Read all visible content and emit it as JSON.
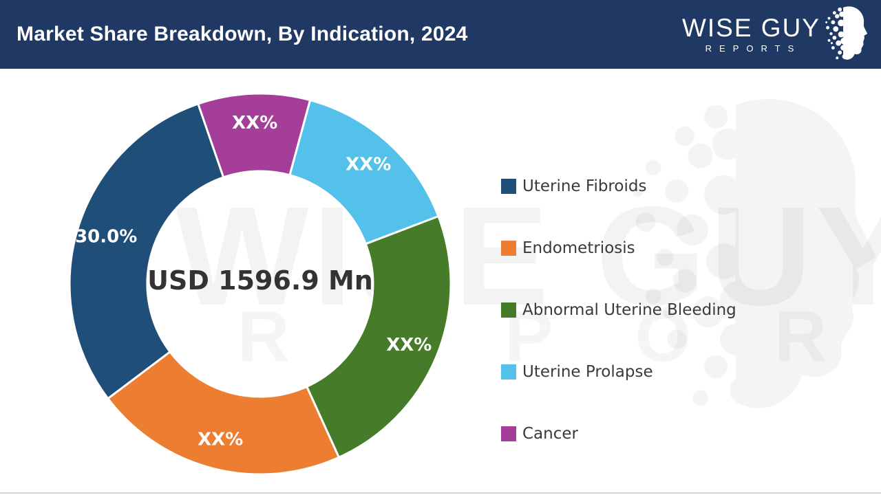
{
  "header": {
    "title": "Market Share Breakdown, By Indication, 2024",
    "bg_color": "#203864",
    "logo": {
      "line1": "WISE GUY",
      "line2": "REPORTS"
    }
  },
  "watermark": {
    "line1": "WISE GUY",
    "line2": "R E P O R T S"
  },
  "chart_data": {
    "type": "donut",
    "title": "Market Share Breakdown, By Indication, 2024",
    "center_label": "USD 1596.9 Mn",
    "start_angle_deg": 341,
    "clockwise": true,
    "legend_position": "right",
    "segments": [
      {
        "name": "Cancer",
        "label": "XX%",
        "share_pct": 9.5,
        "color": "#A43E99"
      },
      {
        "name": "Uterine Prolapse",
        "label": "XX%",
        "share_pct": 15.0,
        "color": "#53C1E9"
      },
      {
        "name": "Abnormal Uterine Bleeding",
        "label": "XX%",
        "share_pct": 24.0,
        "color": "#457B29"
      },
      {
        "name": "Endometriosis",
        "label": "XX%",
        "share_pct": 21.5,
        "color": "#ED7D31"
      },
      {
        "name": "Uterine Fibroids",
        "label": "30.0%",
        "share_pct": 30.0,
        "color": "#1F4E79"
      }
    ],
    "legend": [
      {
        "name": "Uterine Fibroids",
        "color": "#1F4E79"
      },
      {
        "name": "Endometriosis",
        "color": "#ED7D31"
      },
      {
        "name": "Abnormal Uterine Bleeding",
        "color": "#457B29"
      },
      {
        "name": "Uterine Prolapse",
        "color": "#53C1E9"
      },
      {
        "name": "Cancer",
        "color": "#A43E99"
      }
    ]
  }
}
